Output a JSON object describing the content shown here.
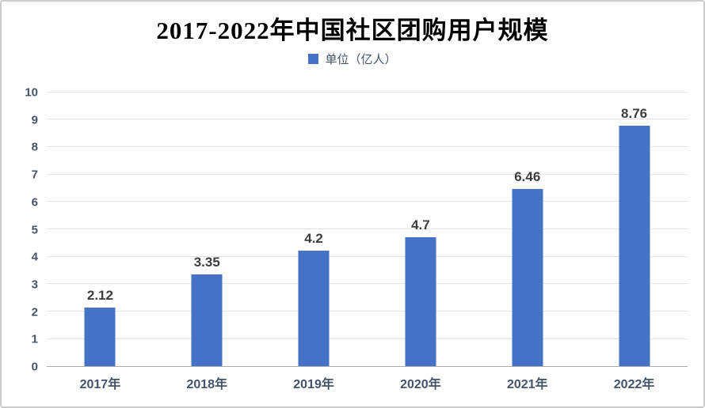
{
  "chart_data": {
    "type": "bar",
    "title": "2017-2022年中国社区团购用户规模",
    "legend": "单位（亿人）",
    "legend_position": "top",
    "categories": [
      "2017年",
      "2018年",
      "2019年",
      "2020年",
      "2021年",
      "2022年"
    ],
    "values": [
      2.12,
      3.35,
      4.2,
      4.7,
      6.46,
      8.76
    ],
    "value_labels": [
      "2.12",
      "3.35",
      "4.2",
      "4.7",
      "6.46",
      "8.76"
    ],
    "xlabel": "",
    "ylabel": "",
    "ylim": [
      0,
      10
    ],
    "ytick_step": 1,
    "grid": true,
    "colors": {
      "bar": "#4472C4",
      "title_text": "#000000",
      "axis_text": "#44546A",
      "value_label_text": "#3d3d3d",
      "gridline": "#e3e3e3",
      "axis_line": "#ababab",
      "frame_border": "#cccccc",
      "background": "#ffffff"
    }
  }
}
